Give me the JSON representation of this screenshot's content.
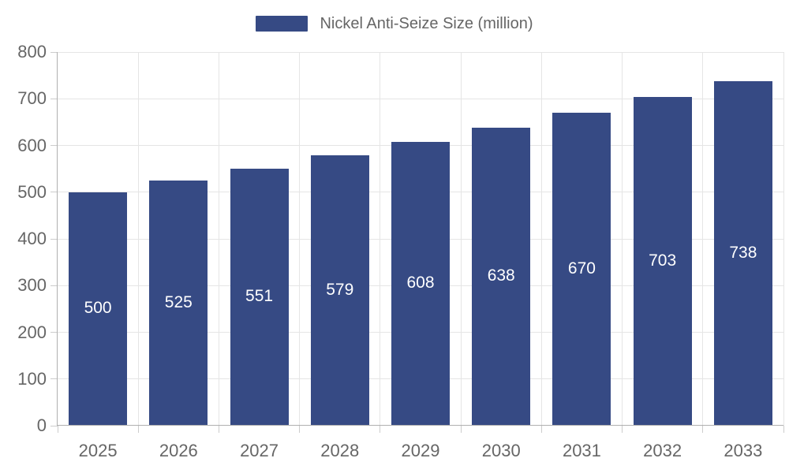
{
  "legend": {
    "label": "Nickel Anti-Seize Size (million)",
    "swatch_color": "#364a84"
  },
  "chart_data": {
    "type": "bar",
    "title": "Nickel Anti-Seize Size (million)",
    "categories": [
      "2025",
      "2026",
      "2027",
      "2028",
      "2029",
      "2030",
      "2031",
      "2032",
      "2033"
    ],
    "series": [
      {
        "name": "Nickel Anti-Seize Size (million)",
        "color": "#364a84",
        "values": [
          500,
          525,
          551,
          579,
          608,
          638,
          670,
          703,
          738
        ]
      }
    ],
    "xlabel": "",
    "ylabel": "",
    "ylim": [
      0,
      800
    ],
    "ytick_step": 100,
    "yticks": [
      0,
      100,
      200,
      300,
      400,
      500,
      600,
      700,
      800
    ],
    "grid": true,
    "legend_position": "top",
    "value_labels_inside_bars": true,
    "colors": {
      "bar": "#364a84",
      "value_label": "#ffffff",
      "grid_line": "#e5e5e5",
      "axis_line": "#b0b0b0",
      "tick_line": "#cccccc",
      "tick_label": "#666666",
      "legend_text": "#666666",
      "background": "#ffffff"
    }
  }
}
